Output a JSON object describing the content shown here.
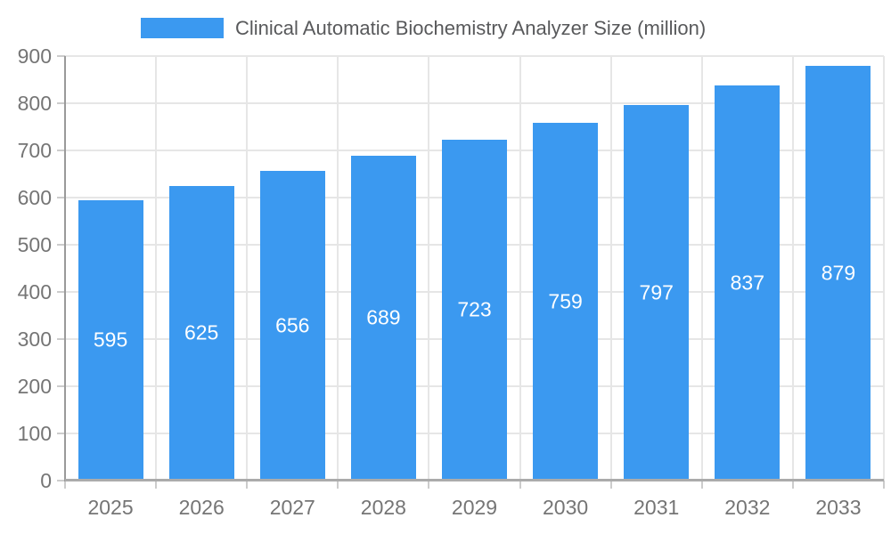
{
  "chart_data": {
    "type": "bar",
    "title": "Clinical Automatic Biochemistry Analyzer Size (million)",
    "series_name": "Clinical Automatic Biochemistry Analyzer Size (million)",
    "categories": [
      "2025",
      "2026",
      "2027",
      "2028",
      "2029",
      "2030",
      "2031",
      "2032",
      "2033"
    ],
    "values": [
      595,
      625,
      656,
      689,
      723,
      759,
      797,
      837,
      879
    ],
    "value_labels": [
      "595",
      "625",
      "656",
      "689",
      "723",
      "759",
      "797",
      "837",
      "879"
    ],
    "xlabel": "",
    "ylabel": "",
    "ylim": [
      0,
      900
    ],
    "ytick_step": 100,
    "ytick_labels": [
      "0",
      "100",
      "200",
      "300",
      "400",
      "500",
      "600",
      "700",
      "800",
      "900"
    ],
    "grid": true,
    "legend_position": "top",
    "colors": {
      "bar": "#3b99f0",
      "bar_value_text": "#ffffff",
      "axis_text": "#757575",
      "title_text": "#58595b",
      "gridline": "#e6e6e6",
      "y_axis_line": "#9a9a9a",
      "x_axis_line": "#ababab",
      "tick": "#cccccc",
      "background": "#ffffff"
    }
  }
}
